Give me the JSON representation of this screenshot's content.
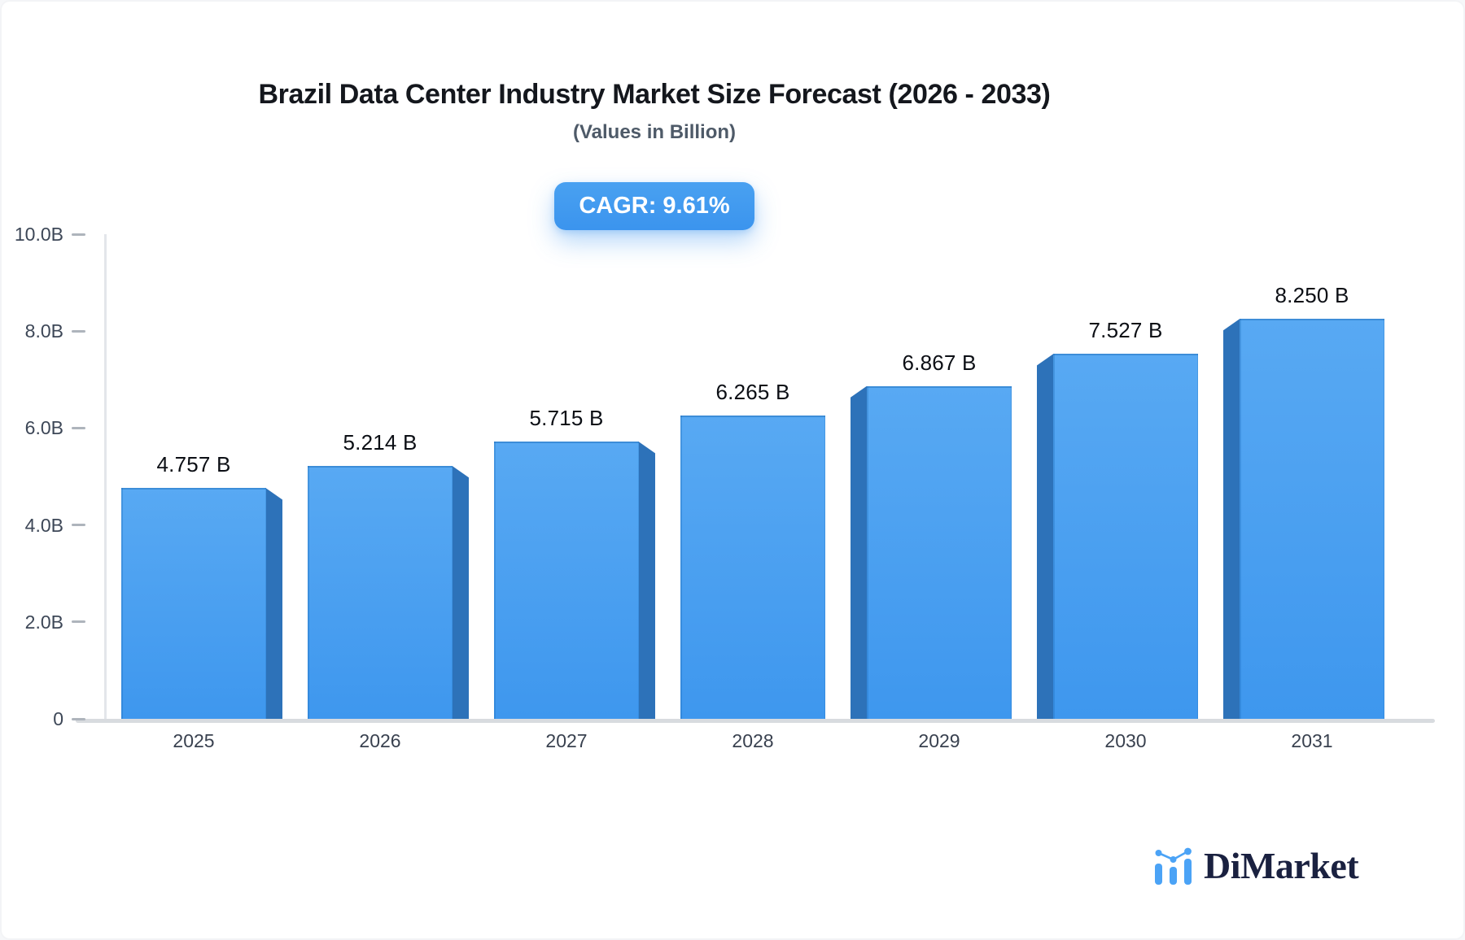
{
  "header": {
    "title": "Brazil Data Center Industry Market Size Forecast (2026 - 2033)",
    "subtitle": "(Values in Billion)",
    "badge_label": "CAGR: 9.61%"
  },
  "brand": {
    "name": "DiMarket"
  },
  "colors": {
    "bar_front_top": "#58A9F3",
    "bar_front_bottom": "#3E97EE",
    "bar_side": "#2D72B9",
    "badge_bg": "#3E97EF",
    "logo_blue": "#4BA3F6",
    "axis_line": "#E3E6EA",
    "baseline": "#D8DBDF",
    "tick_text": "#3D4757"
  },
  "chart_data": {
    "type": "bar",
    "title": "Brazil Data Center Industry Market Size Forecast (2026 - 2033)",
    "subtitle": "(Values in Billion)",
    "xlabel": "",
    "ylabel": "",
    "unit": "Billion",
    "categories": [
      "2025",
      "2026",
      "2027",
      "2028",
      "2029",
      "2030",
      "2031"
    ],
    "values": [
      4.757,
      5.214,
      5.715,
      6.265,
      6.867,
      7.527,
      8.25
    ],
    "value_labels": [
      "4.757 B",
      "5.214 B",
      "5.715 B",
      "6.265 B",
      "6.867 B",
      "7.527 B",
      "8.250 B"
    ],
    "ylim": [
      0,
      10
    ],
    "yticks": [
      {
        "v": 10,
        "label": "10.0B"
      },
      {
        "v": 8,
        "label": "8.0B"
      },
      {
        "v": 6,
        "label": "6.0B"
      },
      {
        "v": 4,
        "label": "4.0B"
      },
      {
        "v": 2,
        "label": "2.0B"
      },
      {
        "v": 0,
        "label": "0"
      }
    ],
    "grid": false,
    "legend": false,
    "cagr": "9.61%"
  }
}
